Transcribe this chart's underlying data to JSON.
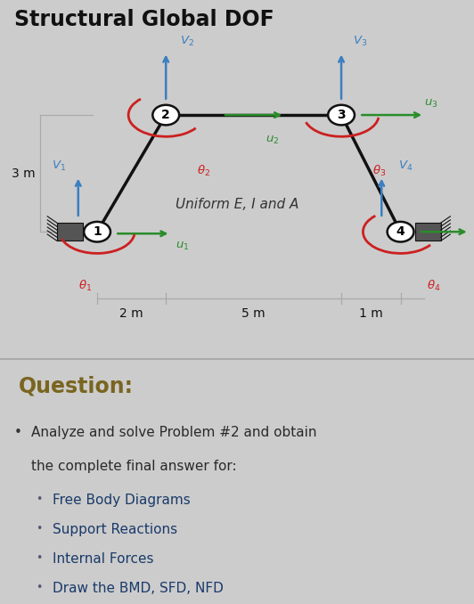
{
  "title": "Structural Global DOF",
  "bg_top": "#e8e8e8",
  "bg_bottom": "#f4f4f4",
  "blue": "#3a7fc1",
  "green": "#2a8c2a",
  "red": "#cc2020",
  "black": "#111111",
  "question_color": "#7a6520",
  "text_dark": "#2a2a2a",
  "sub_color": "#1a3a6a",
  "n1x": 0.205,
  "n1y": 0.355,
  "n2x": 0.35,
  "n2y": 0.68,
  "n3x": 0.72,
  "n3y": 0.68,
  "n4x": 0.845,
  "n4y": 0.355,
  "node_r": 0.028,
  "arc_r": 0.06,
  "label_3m": "3 m",
  "label_2m": "2 m",
  "label_5m": "5 m",
  "label_1m": "1 m",
  "uniform_text": "Uniform E, I and A",
  "question_title": "Question:",
  "sub1": "Free Body Diagrams",
  "sub2": "Support Reactions",
  "sub3": "Internal Forces",
  "sub4": "Draw the BMD, SFD, NFD"
}
